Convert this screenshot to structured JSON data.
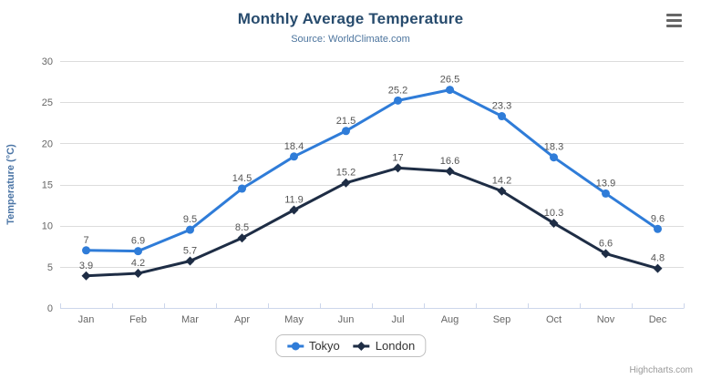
{
  "chart_data": {
    "type": "line",
    "title": "Monthly Average Temperature",
    "subtitle": "Source: WorldClimate.com",
    "xlabel": "",
    "ylabel": "Temperature (°C)",
    "categories": [
      "Jan",
      "Feb",
      "Mar",
      "Apr",
      "May",
      "Jun",
      "Jul",
      "Aug",
      "Sep",
      "Oct",
      "Nov",
      "Dec"
    ],
    "series": [
      {
        "name": "Tokyo",
        "marker": "circle",
        "color": "#2f7cd8",
        "values": [
          7.0,
          6.9,
          9.5,
          14.5,
          18.4,
          21.5,
          25.2,
          26.5,
          23.3,
          18.3,
          13.9,
          9.6
        ],
        "labels": [
          "7",
          "6.9",
          "9.5",
          "14.5",
          "18.4",
          "21.5",
          "25.2",
          "26.5",
          "23.3",
          "18.3",
          "13.9",
          "9.6"
        ]
      },
      {
        "name": "London",
        "marker": "diamond",
        "color": "#1e2d45",
        "values": [
          3.9,
          4.2,
          5.7,
          8.5,
          11.9,
          15.2,
          17.0,
          16.6,
          14.2,
          10.3,
          6.6,
          4.8
        ],
        "labels": [
          "3.9",
          "4.2",
          "5.7",
          "8.5",
          "11.9",
          "15.2",
          "17",
          "16.6",
          "14.2",
          "10.3",
          "6.6",
          "4.8"
        ]
      }
    ],
    "ylim": [
      0,
      30
    ],
    "yticks": [
      0,
      5,
      10,
      15,
      20,
      25,
      30
    ],
    "grid": true,
    "legend_position": "bottom",
    "colors": {
      "title": "#274b6d",
      "subtitle": "#4d759e",
      "y_axis_title": "#4a74a5",
      "axis_label": "#666666",
      "data_label": "#555555",
      "gridline": "#dcdcdc",
      "axis_line": "#ccd6eb",
      "legend_text": "#333333",
      "legend_border": "#bfbfbf",
      "credits": "#999999",
      "menu_icon": "#666666"
    }
  },
  "credits": {
    "label": "Highcharts.com"
  },
  "menu": {
    "icon": "hamburger-icon"
  }
}
